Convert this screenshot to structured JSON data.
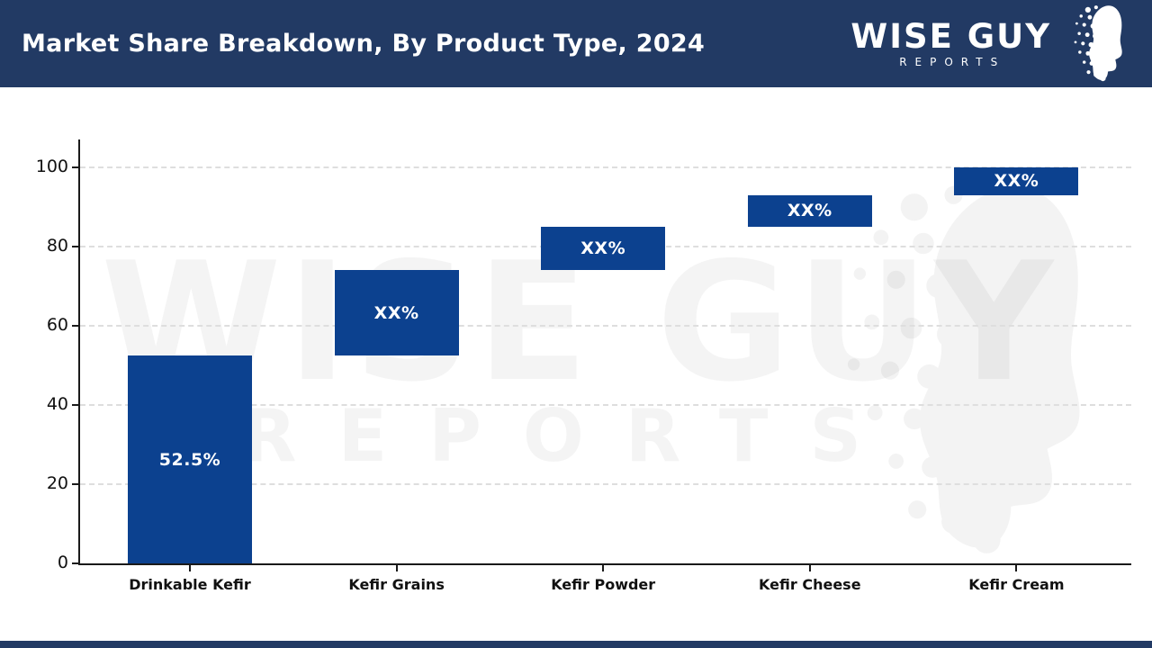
{
  "header": {
    "title": "Market Share Breakdown, By Product Type, 2024",
    "bg_color": "#223a64",
    "logo": {
      "line1": "WISE GUY",
      "line2": "REPORTS"
    }
  },
  "watermark": {
    "line1": "WISE GUY",
    "line2": "REPORTS"
  },
  "chart_data": {
    "type": "bar",
    "subtype": "waterfall-cumulative",
    "title": "Market Share Breakdown, By Product Type, 2024",
    "categories": [
      "Drinkable Kefir",
      "Kefir Grains",
      "Kefir Powder",
      "Kefir Cheese",
      "Kefir Cream"
    ],
    "segments": [
      {
        "category": "Drinkable Kefir",
        "start": 0,
        "end": 52.5,
        "value": 52.5,
        "label": "52.5%"
      },
      {
        "category": "Kefir Grains",
        "start": 52.5,
        "end": 74,
        "value": 21.5,
        "label": "XX%"
      },
      {
        "category": "Kefir Powder",
        "start": 74,
        "end": 85,
        "value": 11,
        "label": "XX%"
      },
      {
        "category": "Kefir Cheese",
        "start": 85,
        "end": 93,
        "value": 8,
        "label": "XX%"
      },
      {
        "category": "Kefir Cream",
        "start": 93,
        "end": 100,
        "value": 7,
        "label": "XX%"
      }
    ],
    "y_ticks": [
      0,
      20,
      40,
      60,
      80,
      100
    ],
    "ylim": [
      0,
      107
    ],
    "xlabel": "",
    "ylabel": "",
    "grid": "horizontal-dashed",
    "legend": "none",
    "bar_color": "#0c418f",
    "bar_label_color": "#ffffff",
    "axis_color": "#1a1a1a",
    "gridline_color": "#dedede"
  },
  "footer": {
    "bg_color": "#223a64"
  }
}
